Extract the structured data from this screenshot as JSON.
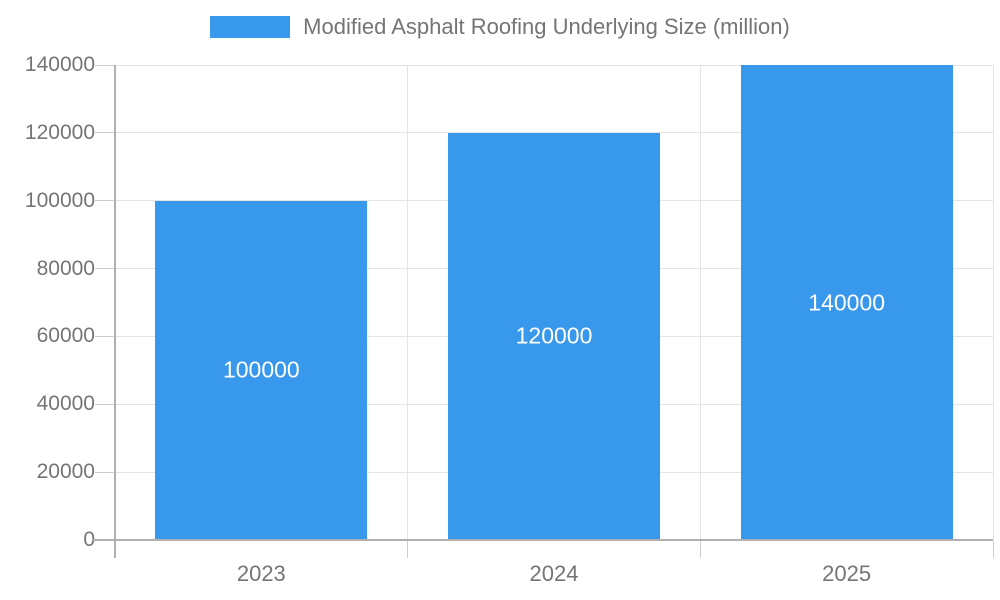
{
  "chart_data": {
    "type": "bar",
    "title": "Modified Asphalt Roofing Underlying Size (million)",
    "categories": [
      "2023",
      "2024",
      "2025"
    ],
    "series": [
      {
        "name": "Modified Asphalt Roofing Underlying Size (million)",
        "values": [
          100000,
          120000,
          140000
        ]
      }
    ],
    "bar_value_labels": [
      "100000",
      "120000",
      "140000"
    ],
    "y_tick_labels": [
      "0",
      "20000",
      "40000",
      "60000",
      "80000",
      "100000",
      "120000",
      "140000"
    ],
    "ylim": [
      0,
      140000
    ],
    "y_tick_step": 20000,
    "xlabel": "",
    "ylabel": "",
    "grid": true,
    "legend_position": "top-center",
    "colors": {
      "bar_fill": "#3898ec",
      "axis_text": "#757575",
      "value_label_text": "#ffffff",
      "gridline": "#e4e4e4",
      "axis_line": "#b0b0b0",
      "tick_line": "#cccccc",
      "background": "#ffffff"
    }
  }
}
